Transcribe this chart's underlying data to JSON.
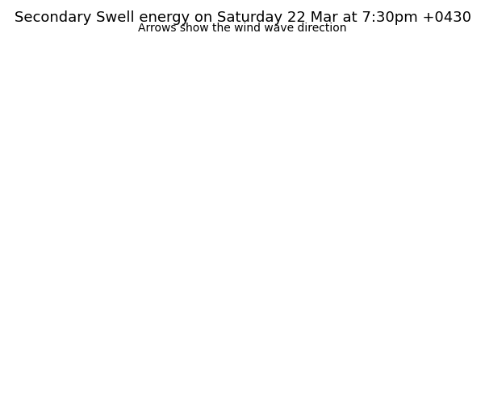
{
  "title": "Secondary Swell energy on Saturday 22 Mar at 7:30pm +0430",
  "subtitle": "Arrows show the wind wave direction",
  "title_fontsize": 13,
  "subtitle_fontsize": 10,
  "extent": [
    43.0,
    83.0,
    22.0,
    47.0
  ],
  "figsize": [
    6.01,
    5.1
  ],
  "dpi": 100,
  "background_color": "#ffffff",
  "land_color": "#aaaaaa",
  "water_color": "#000000",
  "border_color": "#000000",
  "border_linewidth": 0.5,
  "map_bg": "#888888"
}
